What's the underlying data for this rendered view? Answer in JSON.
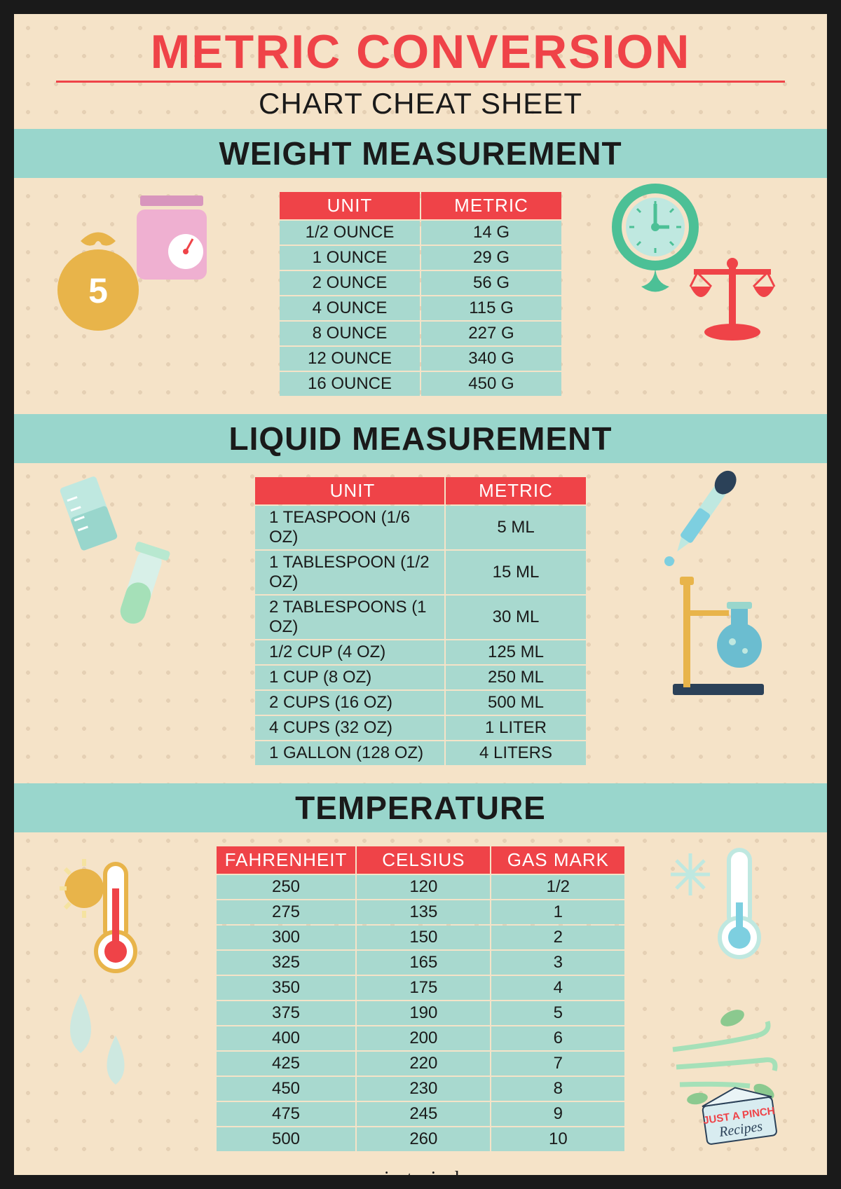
{
  "colors": {
    "page_bg": "#1a1a1a",
    "paper_bg": "#f5e3c8",
    "accent_red": "#ef4348",
    "band_teal": "#99d6cc",
    "cell_teal": "#a8d9cf",
    "text_dark": "#1a1a1a",
    "text_white": "#ffffff",
    "icon_yellow": "#e8b44a",
    "icon_pink": "#efb0d1",
    "icon_green": "#4cc096",
    "icon_lightteal": "#bfe8e0",
    "icon_navy": "#2b4158"
  },
  "typography": {
    "title_fontsize": 68,
    "subtitle_fontsize": 42,
    "section_fontsize": 46,
    "th_fontsize": 26,
    "td_fontsize": 24,
    "footer_fontsize": 28
  },
  "header": {
    "title": "METRIC CONVERSION",
    "subtitle": "CHART CHEAT SHEET"
  },
  "sections": {
    "weight": {
      "heading": "WEIGHT MEASUREMENT",
      "columns": [
        "UNIT",
        "METRIC"
      ],
      "rows": [
        [
          "1/2 OUNCE",
          "14 G"
        ],
        [
          "1 OUNCE",
          "29 G"
        ],
        [
          "2 OUNCE",
          "56 G"
        ],
        [
          "4 OUNCE",
          "115 G"
        ],
        [
          "8 OUNCE",
          "227 G"
        ],
        [
          "12 OUNCE",
          "340 G"
        ],
        [
          "16 OUNCE",
          "450 G"
        ]
      ]
    },
    "liquid": {
      "heading": "LIQUID MEASUREMENT",
      "columns": [
        "UNIT",
        "METRIC"
      ],
      "rows": [
        [
          "1 TEASPOON (1/6 OZ)",
          "5 ML"
        ],
        [
          "1 TABLESPOON (1/2 OZ)",
          "15 ML"
        ],
        [
          "2 TABLESPOONS (1 OZ)",
          "30 ML"
        ],
        [
          "1/2 CUP (4 OZ)",
          "125 ML"
        ],
        [
          "1 CUP (8 OZ)",
          "250 ML"
        ],
        [
          "2 CUPS (16 OZ)",
          "500 ML"
        ],
        [
          "4 CUPS (32 OZ)",
          "1 LITER"
        ],
        [
          "1 GALLON (128 OZ)",
          "4 LITERS"
        ]
      ]
    },
    "temperature": {
      "heading": "TEMPERATURE",
      "columns": [
        "FAHRENHEIT",
        "CELSIUS",
        "GAS MARK"
      ],
      "rows": [
        [
          "250",
          "120",
          "1/2"
        ],
        [
          "275",
          "135",
          "1"
        ],
        [
          "300",
          "150",
          "2"
        ],
        [
          "325",
          "165",
          "3"
        ],
        [
          "350",
          "175",
          "4"
        ],
        [
          "375",
          "190",
          "5"
        ],
        [
          "400",
          "200",
          "6"
        ],
        [
          "425",
          "220",
          "7"
        ],
        [
          "450",
          "230",
          "8"
        ],
        [
          "475",
          "245",
          "9"
        ],
        [
          "500",
          "260",
          "10"
        ]
      ]
    }
  },
  "footer": {
    "url": "www.justapinch.com",
    "logo_top": "JUST A PINCH",
    "logo_bottom": "Recipes"
  },
  "icons": {
    "kettlebell_label": "5"
  }
}
